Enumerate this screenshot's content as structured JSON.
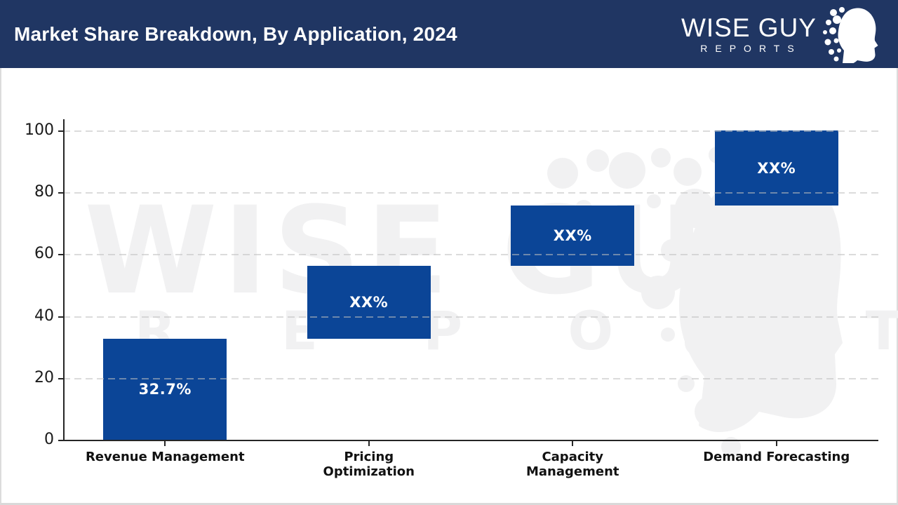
{
  "header": {
    "title": "Market Share Breakdown, By Application, 2024",
    "logo": {
      "line1": "WISE GUY",
      "line2": "REPORTS"
    },
    "background_color": "#203663"
  },
  "watermark": {
    "line1": "WISE GUY",
    "line2": "R E P O R T S"
  },
  "chart_data": {
    "type": "bar",
    "subtype": "waterfall",
    "title": "Market Share Breakdown, By Application, 2024",
    "categories": [
      "Revenue Management",
      "Pricing Optimization",
      "Capacity Management",
      "Demand Forecasting"
    ],
    "categories_display": [
      "Revenue Management",
      "Pricing\nOptimization",
      "Capacity\nManagement",
      "Demand Forecasting"
    ],
    "series": [
      {
        "name": "Market Share",
        "segments": [
          {
            "category": "Revenue Management",
            "start": 0,
            "end": 32.7,
            "label": "32.7%"
          },
          {
            "category": "Pricing Optimization",
            "start": 32.7,
            "end": 56.3,
            "label": "XX%"
          },
          {
            "category": "Capacity Management",
            "start": 56.3,
            "end": 75.7,
            "label": "XX%"
          },
          {
            "category": "Demand Forecasting",
            "start": 75.7,
            "end": 100,
            "label": "XX%"
          }
        ]
      }
    ],
    "xlabel": "",
    "ylabel": "",
    "ylim": [
      0,
      100
    ],
    "yticks": [
      0,
      20,
      40,
      60,
      80,
      100
    ],
    "grid": "horizontal-dashed",
    "legend": "none",
    "bar_color": "#0b4597",
    "bar_label_color": "#ffffff",
    "axis_color": "#262626"
  }
}
